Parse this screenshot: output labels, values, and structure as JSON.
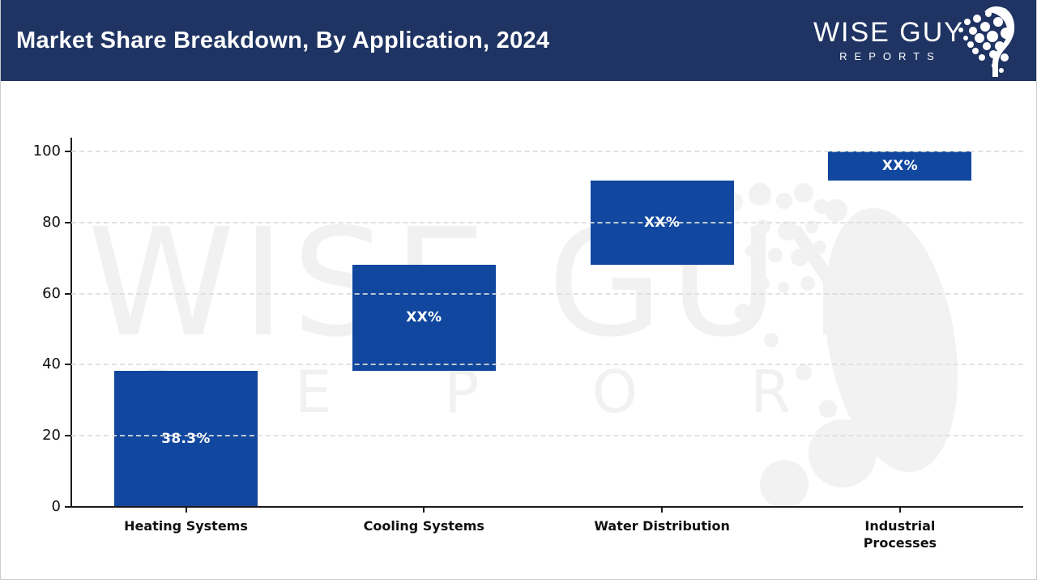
{
  "header": {
    "title": "Market Share Breakdown, By Application, 2024",
    "bg_color": "#1f3463",
    "logo": {
      "line1": "WISE GUY",
      "line2": "REPORTS",
      "icon": "dotted-head-profile"
    }
  },
  "watermark": {
    "line1": "WISE GUY",
    "line2": "R E P O R T S",
    "icon": "dotted-head-profile",
    "color": "#f1f1f1"
  },
  "chart_data": {
    "type": "bar",
    "subtype": "waterfall-floating-bars",
    "title": "Market Share Breakdown, By Application, 2024",
    "categories": [
      "Heating Systems",
      "Cooling Systems",
      "Water Distribution",
      "Industrial Processes"
    ],
    "category_label_lines": [
      [
        "Heating Systems"
      ],
      [
        "Cooling Systems"
      ],
      [
        "Water Distribution"
      ],
      [
        "Industrial",
        "Processes"
      ]
    ],
    "segments": [
      {
        "category": "Heating Systems",
        "start": 0,
        "end": 38.3,
        "label": "38.3%"
      },
      {
        "category": "Cooling Systems",
        "start": 38.3,
        "end": 68.1,
        "label": "XX%"
      },
      {
        "category": "Water Distribution",
        "start": 68.1,
        "end": 91.8,
        "label": "XX%"
      },
      {
        "category": "Industrial Processes",
        "start": 91.8,
        "end": 100,
        "label": "XX%"
      }
    ],
    "yticks": [
      0,
      20,
      40,
      60,
      80,
      100
    ],
    "ylim": [
      0,
      104
    ],
    "xlabel": "",
    "ylabel": "",
    "grid": "horizontal-dashed",
    "legend": "none",
    "bar_color": "#11479e",
    "bar_label_color": "#ffffff",
    "axis_color": "#1a1a1a",
    "gridline_color": "#dedede"
  }
}
